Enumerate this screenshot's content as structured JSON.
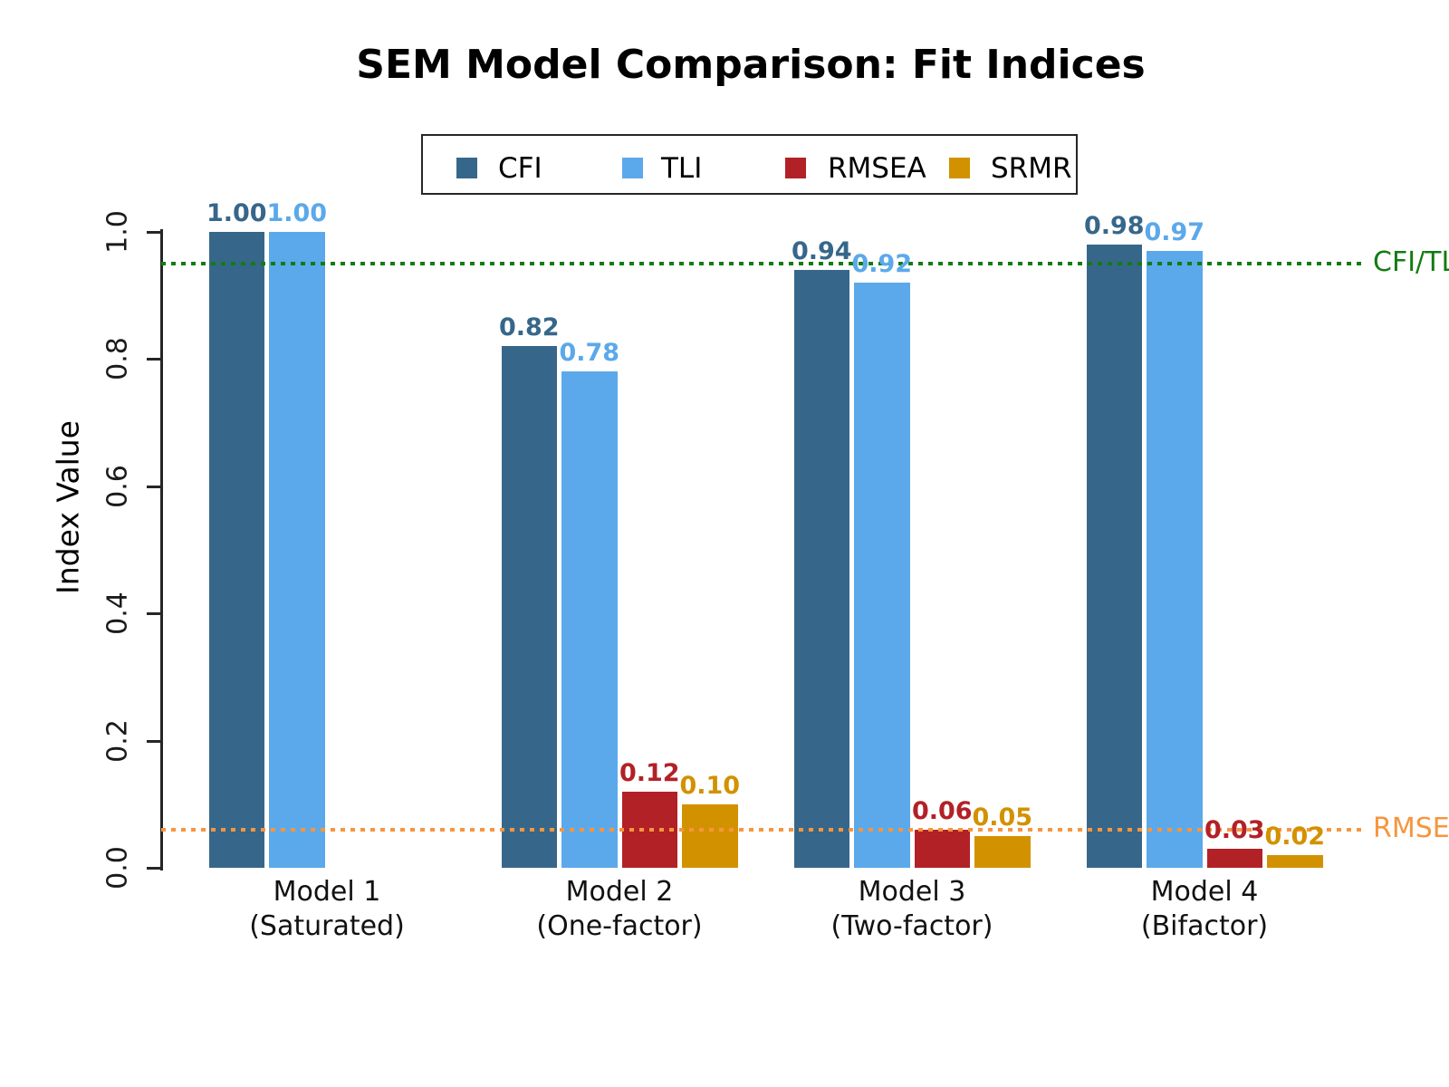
{
  "chart_data": {
    "type": "bar",
    "title": "SEM Model Comparison: Fit Indices",
    "ylabel": "Index Value",
    "ylim": [
      0,
      1.0
    ],
    "ytick_values": [
      0,
      0.2,
      0.4,
      0.6,
      0.8,
      1.0
    ],
    "ytick_labels": [
      "0.0",
      "0.2",
      "0.4",
      "0.6",
      "0.8",
      "1.0"
    ],
    "grid": false,
    "legend_position": "top-center",
    "categories": [
      {
        "label": "Model 1",
        "sublabel": "(Saturated)"
      },
      {
        "label": "Model 2",
        "sublabel": "(One-factor)"
      },
      {
        "label": "Model 3",
        "sublabel": "(Two-factor)"
      },
      {
        "label": "Model 4",
        "sublabel": "(Bifactor)"
      }
    ],
    "series": [
      {
        "name": "CFI",
        "color": "#36678A",
        "values": [
          1.0,
          0.82,
          0.94,
          0.98
        ],
        "value_labels": [
          "1.00",
          "0.82",
          "0.94",
          "0.98"
        ]
      },
      {
        "name": "TLI",
        "color": "#5BA9EA",
        "values": [
          1.0,
          0.78,
          0.92,
          0.97
        ],
        "value_labels": [
          "1.00",
          "0.78",
          "0.92",
          "0.97"
        ]
      },
      {
        "name": "RMSEA",
        "color": "#B22126",
        "values": [
          0,
          0.12,
          0.06,
          0.03
        ],
        "value_labels": [
          "",
          "0.12",
          "0.06",
          "0.03"
        ]
      },
      {
        "name": "SRMR",
        "color": "#D29200",
        "values": [
          0,
          0.1,
          0.05,
          0.02
        ],
        "value_labels": [
          "",
          "0.10",
          "0.05",
          "0.02"
        ]
      }
    ],
    "threshold_lines": [
      {
        "label": "CFI/TLI",
        "value": 0.95,
        "color": "#127C12"
      },
      {
        "label": "RMSEA",
        "value": 0.06,
        "color": "#F7953F"
      }
    ]
  }
}
